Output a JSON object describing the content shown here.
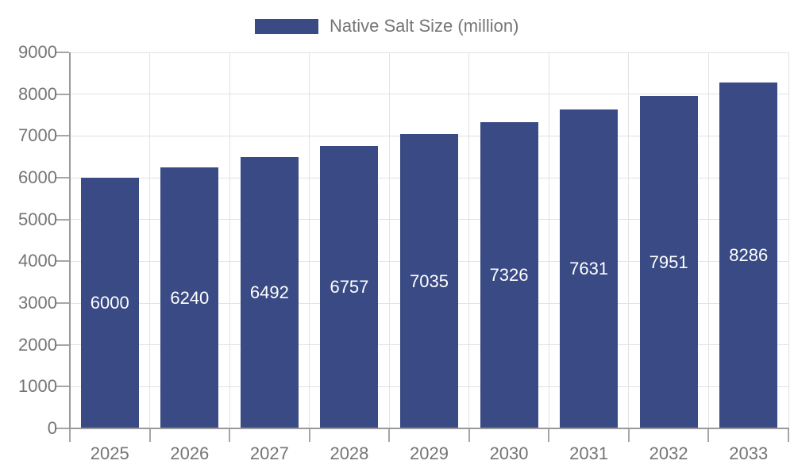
{
  "chart_data": {
    "type": "bar",
    "title": "",
    "legend": "Native Salt Size (million)",
    "legend_position": "top-center",
    "categories": [
      "2025",
      "2026",
      "2027",
      "2028",
      "2029",
      "2030",
      "2031",
      "2032",
      "2033"
    ],
    "values": [
      6000,
      6240,
      6492,
      6757,
      7035,
      7326,
      7631,
      7951,
      8286
    ],
    "xlabel": "",
    "ylabel": "",
    "ylim": [
      0,
      9000
    ],
    "yticks": [
      0,
      1000,
      2000,
      3000,
      4000,
      5000,
      6000,
      7000,
      8000,
      9000
    ],
    "grid": true,
    "bar_label_position": "inside-center",
    "colors": {
      "bar": "#394A84",
      "bar_label": "#FFFFFF",
      "grid": "#E2E2E2",
      "axis": "#999999",
      "tick": "#A6A6A6",
      "text": "#757575",
      "background": "#FFFFFF"
    }
  }
}
